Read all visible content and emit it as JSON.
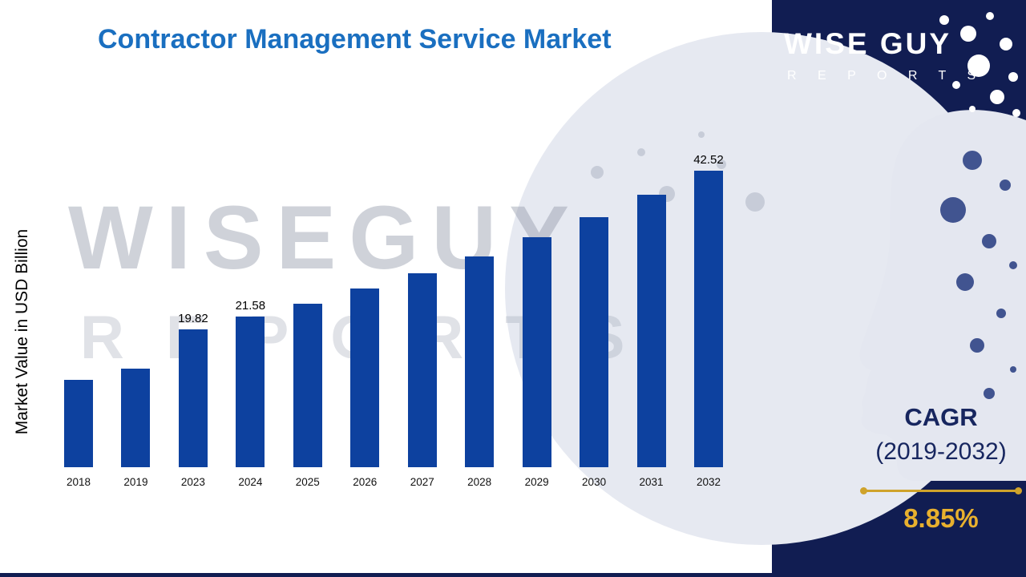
{
  "header": {
    "title": "Contractor Management Service Market"
  },
  "logo": {
    "line1": "WISE GUY",
    "line2": "R E P O R T S"
  },
  "watermark": {
    "line1": "WISEGUY",
    "line2": "REPORTS"
  },
  "side_panel": {
    "cagr_label": "CAGR",
    "cagr_range": "(2019-2032)",
    "cagr_value": "8.85%"
  },
  "colors": {
    "bar": "#0d419f",
    "title": "#1a6fc0",
    "panel": "#111d52",
    "accent_gold": "#cfa32b",
    "value_gold": "#e8b02e"
  },
  "chart_data": {
    "type": "bar",
    "title": "Contractor Management Service Market",
    "xlabel": "",
    "ylabel": "Market Value in USD Billion",
    "categories": [
      "2018",
      "2019",
      "2023",
      "2024",
      "2025",
      "2026",
      "2027",
      "2028",
      "2029",
      "2030",
      "2031",
      "2032"
    ],
    "values": [
      12.5,
      14.1,
      19.82,
      21.58,
      23.5,
      25.6,
      27.8,
      30.3,
      33.0,
      35.9,
      39.1,
      42.52
    ],
    "bar_labels": [
      "",
      "",
      "19.82",
      "21.58",
      "",
      "",
      "",
      "",
      "",
      "",
      "",
      "42.52"
    ],
    "ylim": [
      0,
      48.65
    ],
    "bar_color": "#0d419f",
    "grid": false,
    "legend": false
  }
}
